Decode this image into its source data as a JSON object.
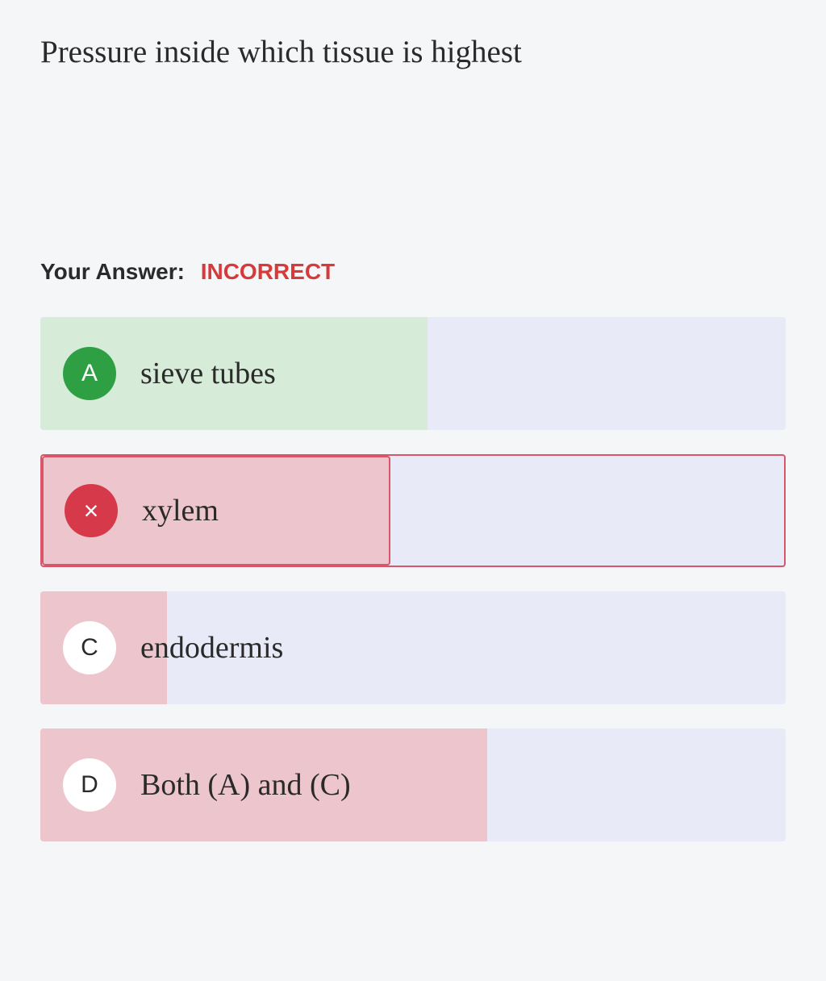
{
  "question": "Pressure inside which tissue is highest",
  "answer_status": {
    "label": "Your Answer:",
    "value": "INCORRECT",
    "value_color": "#d63a3a"
  },
  "options": [
    {
      "badge": "A",
      "badge_style": "green",
      "text": "sieve tubes",
      "fill_percent": 52,
      "fill_style": "correct",
      "is_incorrect_selected": false
    },
    {
      "badge": "×",
      "badge_style": "red",
      "text": "xylem",
      "fill_percent": 47,
      "fill_style": "incorrect",
      "is_incorrect_selected": true
    },
    {
      "badge": "C",
      "badge_style": "white",
      "text": "endodermis",
      "fill_percent": 17,
      "fill_style": "default",
      "is_incorrect_selected": false
    },
    {
      "badge": "D",
      "badge_style": "white",
      "text": "Both (A) and (C)",
      "fill_percent": 60,
      "fill_style": "default",
      "is_incorrect_selected": false
    }
  ],
  "colors": {
    "background": "#f5f6f8",
    "option_bg": "#e8ebf7",
    "correct_fill": "#d6ecd8",
    "incorrect_fill": "#edc5cc",
    "default_fill": "#edc5cc",
    "green_badge": "#2ea043",
    "red_badge": "#d63a4a",
    "white_badge": "#ffffff",
    "text": "#2a2a2a",
    "incorrect_border": "#d9566a"
  }
}
